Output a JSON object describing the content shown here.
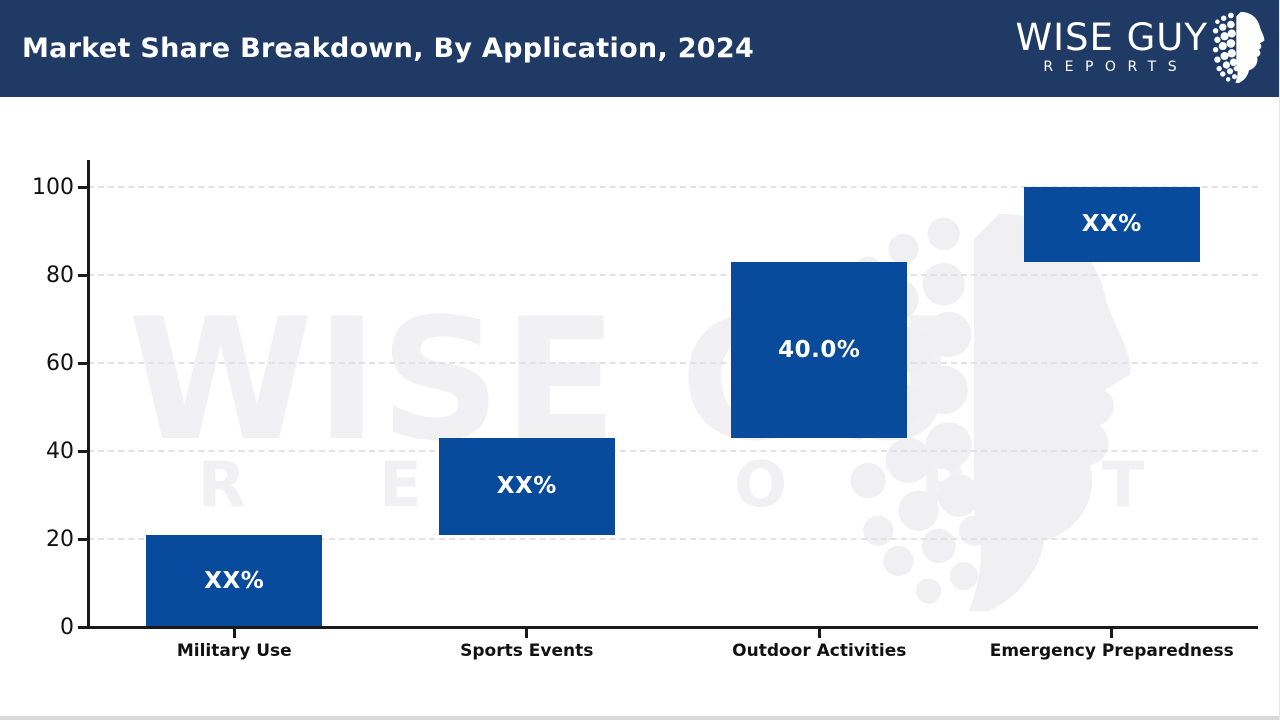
{
  "header": {
    "title": "Market Share Breakdown, By Application, 2024",
    "logo_line1": "WISE GUY",
    "logo_line2": "REPORTS"
  },
  "watermark": {
    "line1": "WISE GU",
    "line2": "R E P O R T S"
  },
  "chart_data": {
    "type": "bar",
    "variant": "floating-waterfall",
    "title": "Market Share Breakdown, By Application, 2024",
    "categories": [
      "Military Use",
      "Sports Events",
      "Outdoor Activities",
      "Emergency Preparedness"
    ],
    "series": [
      {
        "name": "Market Share",
        "segments": [
          {
            "from": 0,
            "to": 21,
            "label": "XX%"
          },
          {
            "from": 21,
            "to": 43,
            "label": "XX%"
          },
          {
            "from": 43,
            "to": 83,
            "label": "40.0%"
          },
          {
            "from": 83,
            "to": 100,
            "label": "XX%"
          }
        ]
      }
    ],
    "ylim": [
      0,
      100
    ],
    "yticks": [
      0,
      20,
      40,
      60,
      80,
      100
    ],
    "xlabel": "",
    "ylabel": "",
    "grid": "horizontal-dashed",
    "legend": "none",
    "colors": {
      "bar": "#084a9c",
      "bar_label": "#ffffff",
      "header_bg": "#203a66",
      "grid": "#e2e2e2",
      "axis": "#1a1a1a"
    }
  }
}
